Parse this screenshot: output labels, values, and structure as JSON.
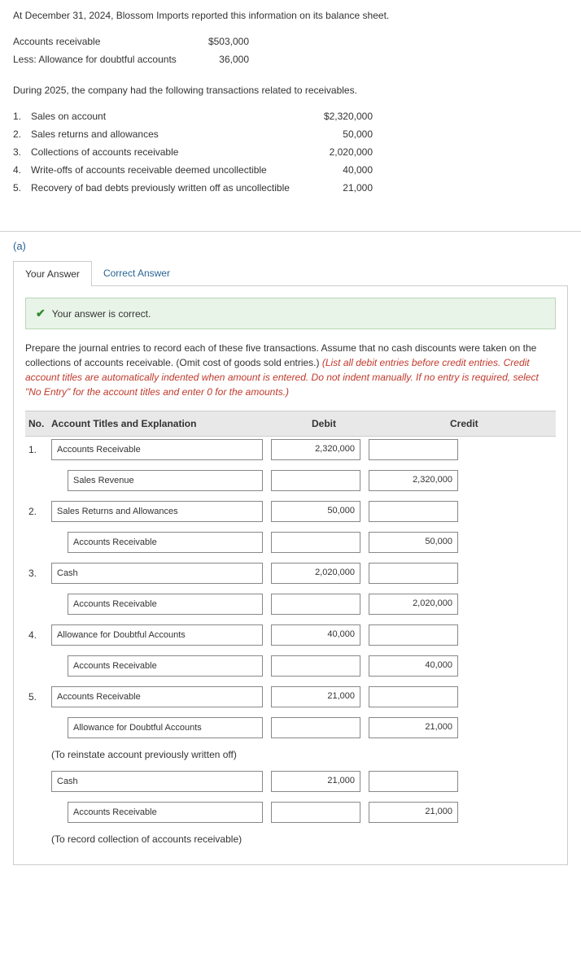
{
  "intro_text": "At December 31, 2024, Blossom Imports reported this information on its balance sheet.",
  "balance": [
    {
      "label": "Accounts receivable",
      "value": "$503,000"
    },
    {
      "label": "Less: Allowance for doubtful accounts",
      "value": "36,000"
    }
  ],
  "transactions_intro": "During 2025, the company had the following transactions related to receivables.",
  "transactions": [
    {
      "num": "1.",
      "label": "Sales on account",
      "value": "$2,320,000"
    },
    {
      "num": "2.",
      "label": "Sales returns and allowances",
      "value": "50,000"
    },
    {
      "num": "3.",
      "label": "Collections of accounts receivable",
      "value": "2,020,000"
    },
    {
      "num": "4.",
      "label": "Write-offs of accounts receivable deemed uncollectible",
      "value": "40,000"
    },
    {
      "num": "5.",
      "label": "Recovery of bad debts previously written off as uncollectible",
      "value": "21,000"
    }
  ],
  "part_label": "(a)",
  "tabs": {
    "active": "Your Answer",
    "inactive": "Correct Answer"
  },
  "correct_msg": "Your answer is correct.",
  "instructions_plain": "Prepare the journal entries to record each of these five transactions. Assume that no cash discounts were taken on the collections of accounts receivable. (Omit cost of goods sold entries.) ",
  "instructions_red": "(List all debit entries before credit entries. Credit account titles are automatically indented when amount is entered. Do not indent manually. If no entry is required, select \"No Entry\" for the account titles and enter 0 for the amounts.)",
  "headers": {
    "no": "No.",
    "acct": "Account Titles and Explanation",
    "debit": "Debit",
    "credit": "Credit"
  },
  "entries": [
    {
      "num": "1.",
      "lines": [
        {
          "acct": "Accounts Receivable",
          "debit": "2,320,000",
          "credit": "",
          "indent": false
        },
        {
          "acct": "Sales Revenue",
          "debit": "",
          "credit": "2,320,000",
          "indent": true
        }
      ]
    },
    {
      "num": "2.",
      "lines": [
        {
          "acct": "Sales Returns and Allowances",
          "debit": "50,000",
          "credit": "",
          "indent": false
        },
        {
          "acct": "Accounts Receivable",
          "debit": "",
          "credit": "50,000",
          "indent": true
        }
      ]
    },
    {
      "num": "3.",
      "lines": [
        {
          "acct": "Cash",
          "debit": "2,020,000",
          "credit": "",
          "indent": false
        },
        {
          "acct": "Accounts Receivable",
          "debit": "",
          "credit": "2,020,000",
          "indent": true
        }
      ]
    },
    {
      "num": "4.",
      "lines": [
        {
          "acct": "Allowance for Doubtful Accounts",
          "debit": "40,000",
          "credit": "",
          "indent": false
        },
        {
          "acct": "Accounts Receivable",
          "debit": "",
          "credit": "40,000",
          "indent": true
        }
      ]
    },
    {
      "num": "5.",
      "lines": [
        {
          "acct": "Accounts Receivable",
          "debit": "21,000",
          "credit": "",
          "indent": false
        },
        {
          "acct": "Allowance for Doubtful Accounts",
          "debit": "",
          "credit": "21,000",
          "indent": true
        }
      ],
      "desc": "(To reinstate account previously written off)"
    },
    {
      "num": "",
      "lines": [
        {
          "acct": "Cash",
          "debit": "21,000",
          "credit": "",
          "indent": false
        },
        {
          "acct": "Accounts Receivable",
          "debit": "",
          "credit": "21,000",
          "indent": true
        }
      ],
      "desc": "(To record collection of accounts receivable)"
    }
  ]
}
